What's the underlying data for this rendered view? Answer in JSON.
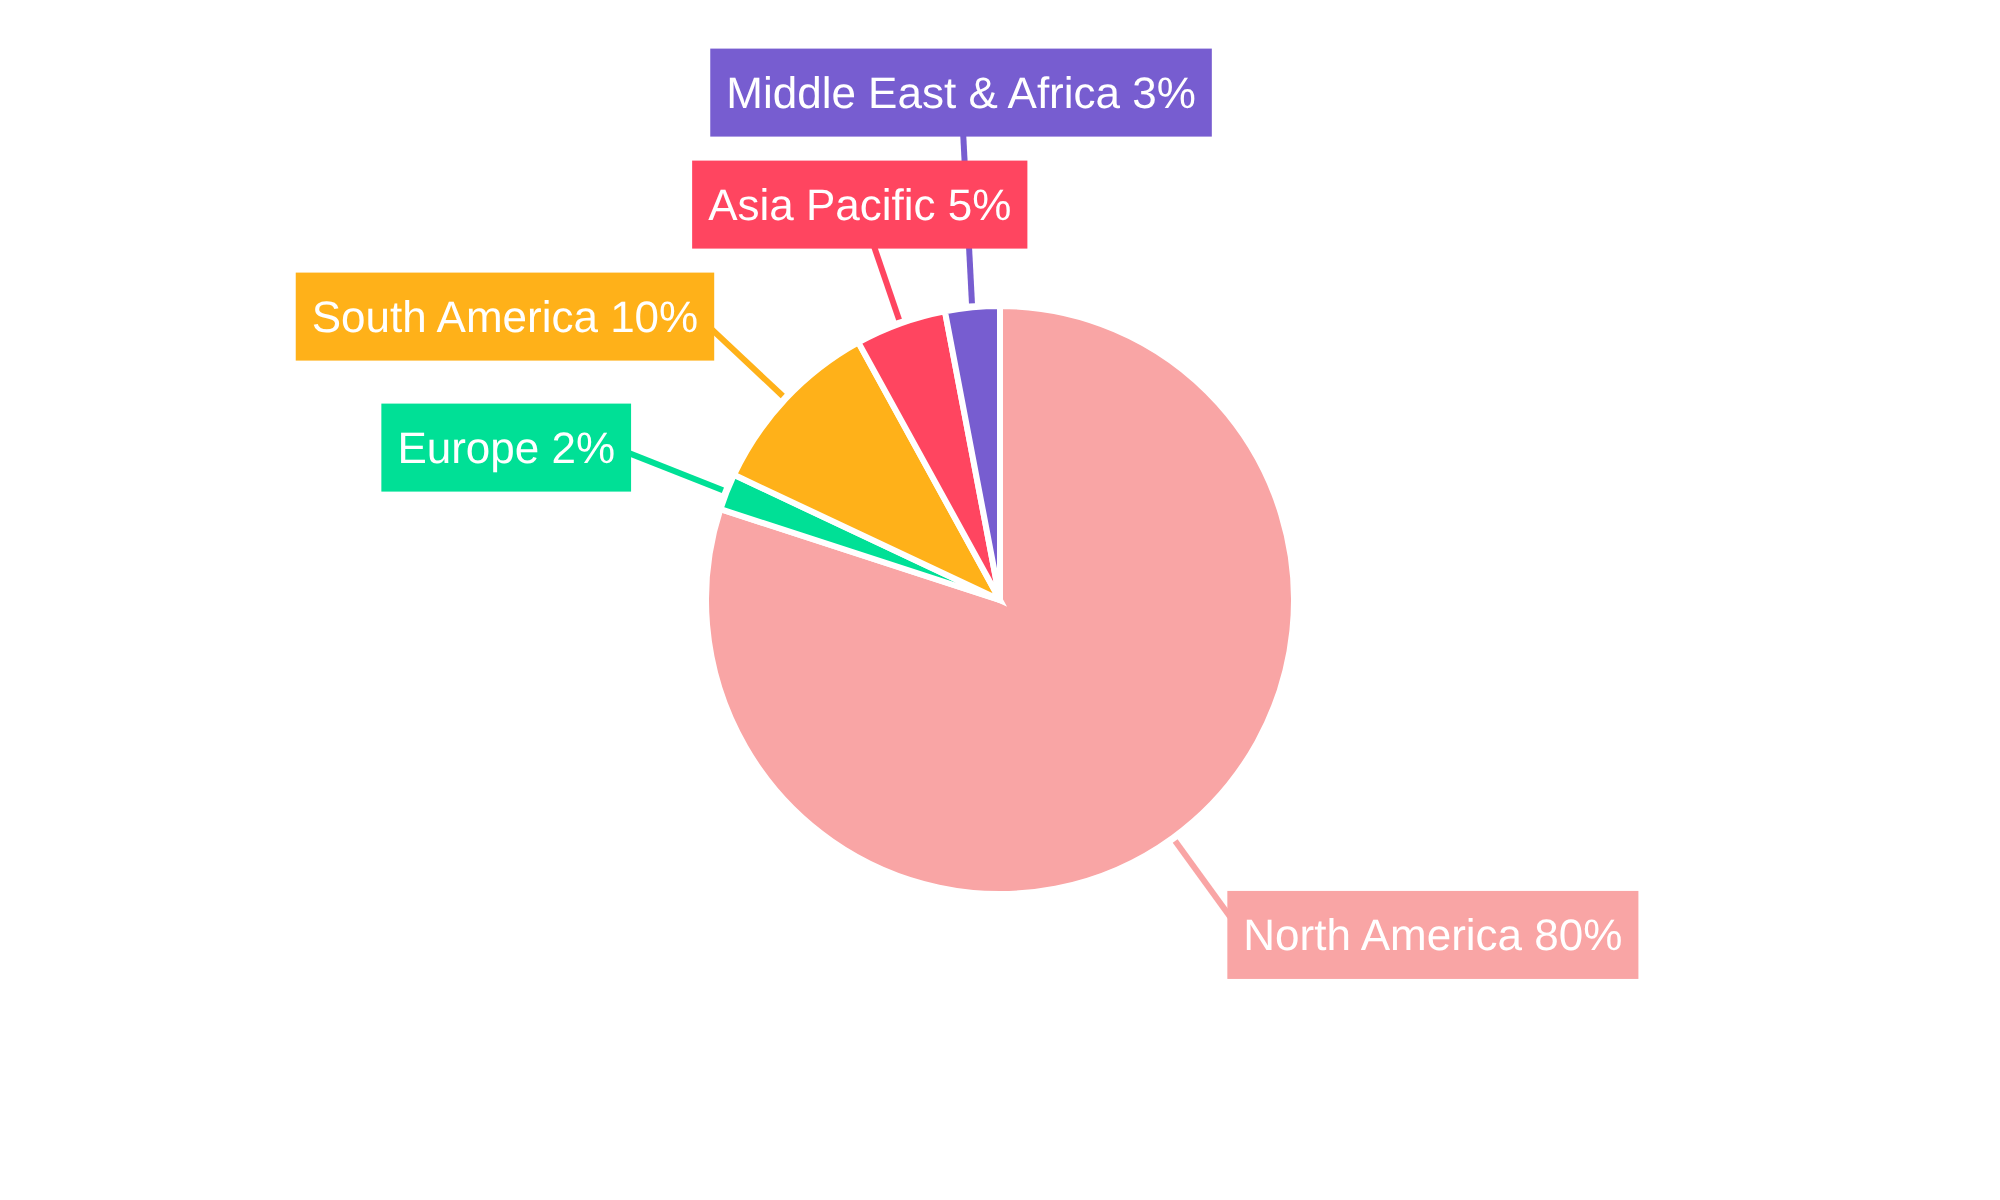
{
  "chart_data": {
    "type": "pie",
    "categories": [
      "North America",
      "Europe",
      "South America",
      "Asia Pacific",
      "Middle East & Africa"
    ],
    "values": [
      80,
      2,
      10,
      5,
      3
    ],
    "colors": [
      "#f9a5a5",
      "#00e096",
      "#ffb119",
      "#ff4560",
      "#775dd0"
    ],
    "value_labels": [
      "80%",
      "2%",
      "10%",
      "5%",
      "3%"
    ]
  }
}
